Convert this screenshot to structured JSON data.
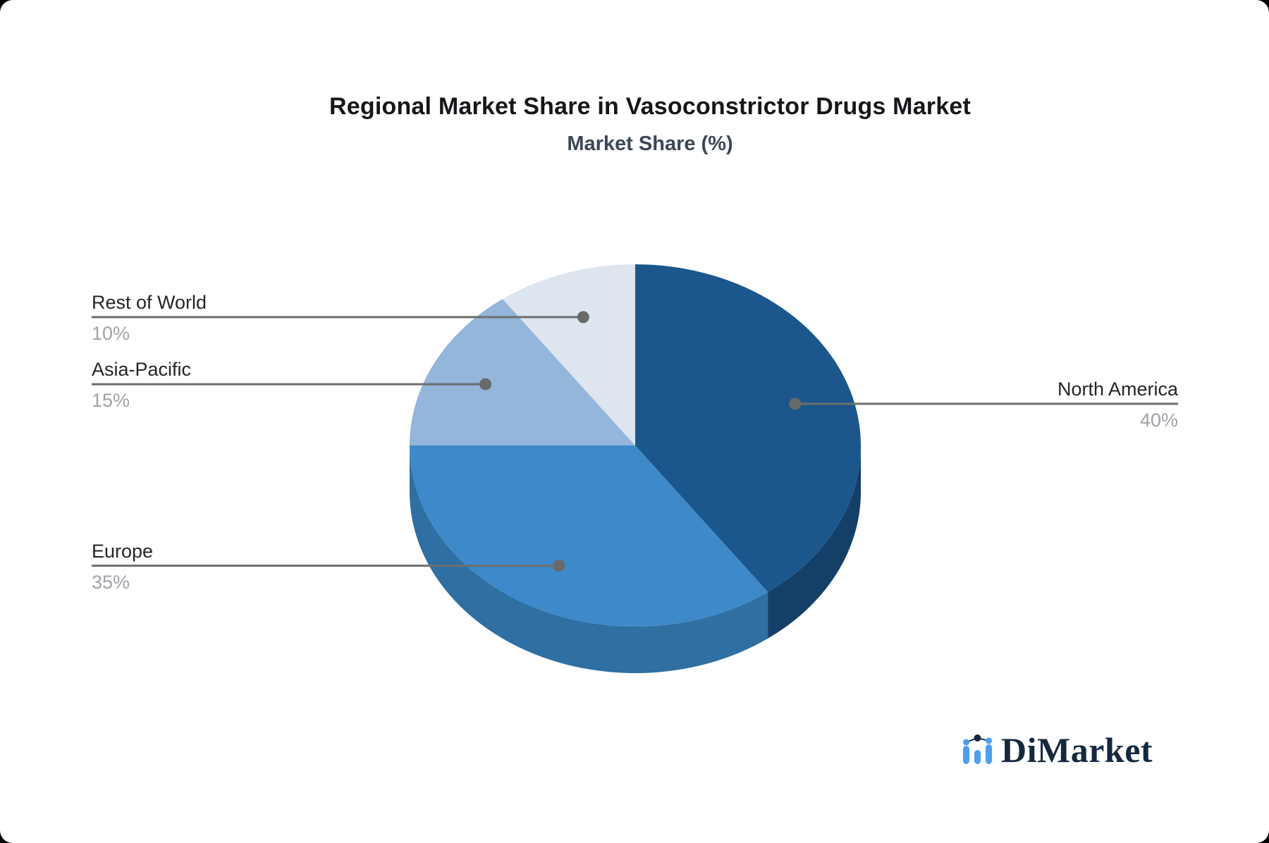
{
  "header": {
    "title": "Regional Market Share in Vasoconstrictor Drugs Market",
    "subtitle": "Market Share (%)"
  },
  "chart_data": {
    "type": "pie",
    "style": "3d-pie",
    "title": "Regional Market Share in Vasoconstrictor Drugs Market",
    "subtitle": "Market Share (%)",
    "unit": "%",
    "start_angle_deg": 0,
    "direction": "clockwise",
    "labels_position": "outside-leader-lines",
    "legend": "none",
    "slices": [
      {
        "label": "North America",
        "value": 40,
        "pct_label": "40%",
        "color": "#1b578c",
        "side_color": "#143f68"
      },
      {
        "label": "Europe",
        "value": 35,
        "pct_label": "35%",
        "color": "#3d89ca",
        "side_color": "#2f6fa2"
      },
      {
        "label": "Asia-Pacific",
        "value": 15,
        "pct_label": "15%",
        "color": "#93b6da",
        "side_color": "#6e93b8"
      },
      {
        "label": "Rest of World",
        "value": 10,
        "pct_label": "10%",
        "color": "#dde5ee",
        "side_color": "#b3c4d6"
      }
    ]
  },
  "brand": {
    "name": "DiMarket"
  },
  "colors": {
    "background": "#ffffff",
    "title_text": "#15171a",
    "subtitle_text": "#3b4758",
    "label_text": "#252525",
    "pct_text": "#a0a3a8",
    "leader_line": "#6e6e6e",
    "leader_dot": "#696969",
    "logo_text": "#152840",
    "logo_accent": "#4aa0f2"
  }
}
